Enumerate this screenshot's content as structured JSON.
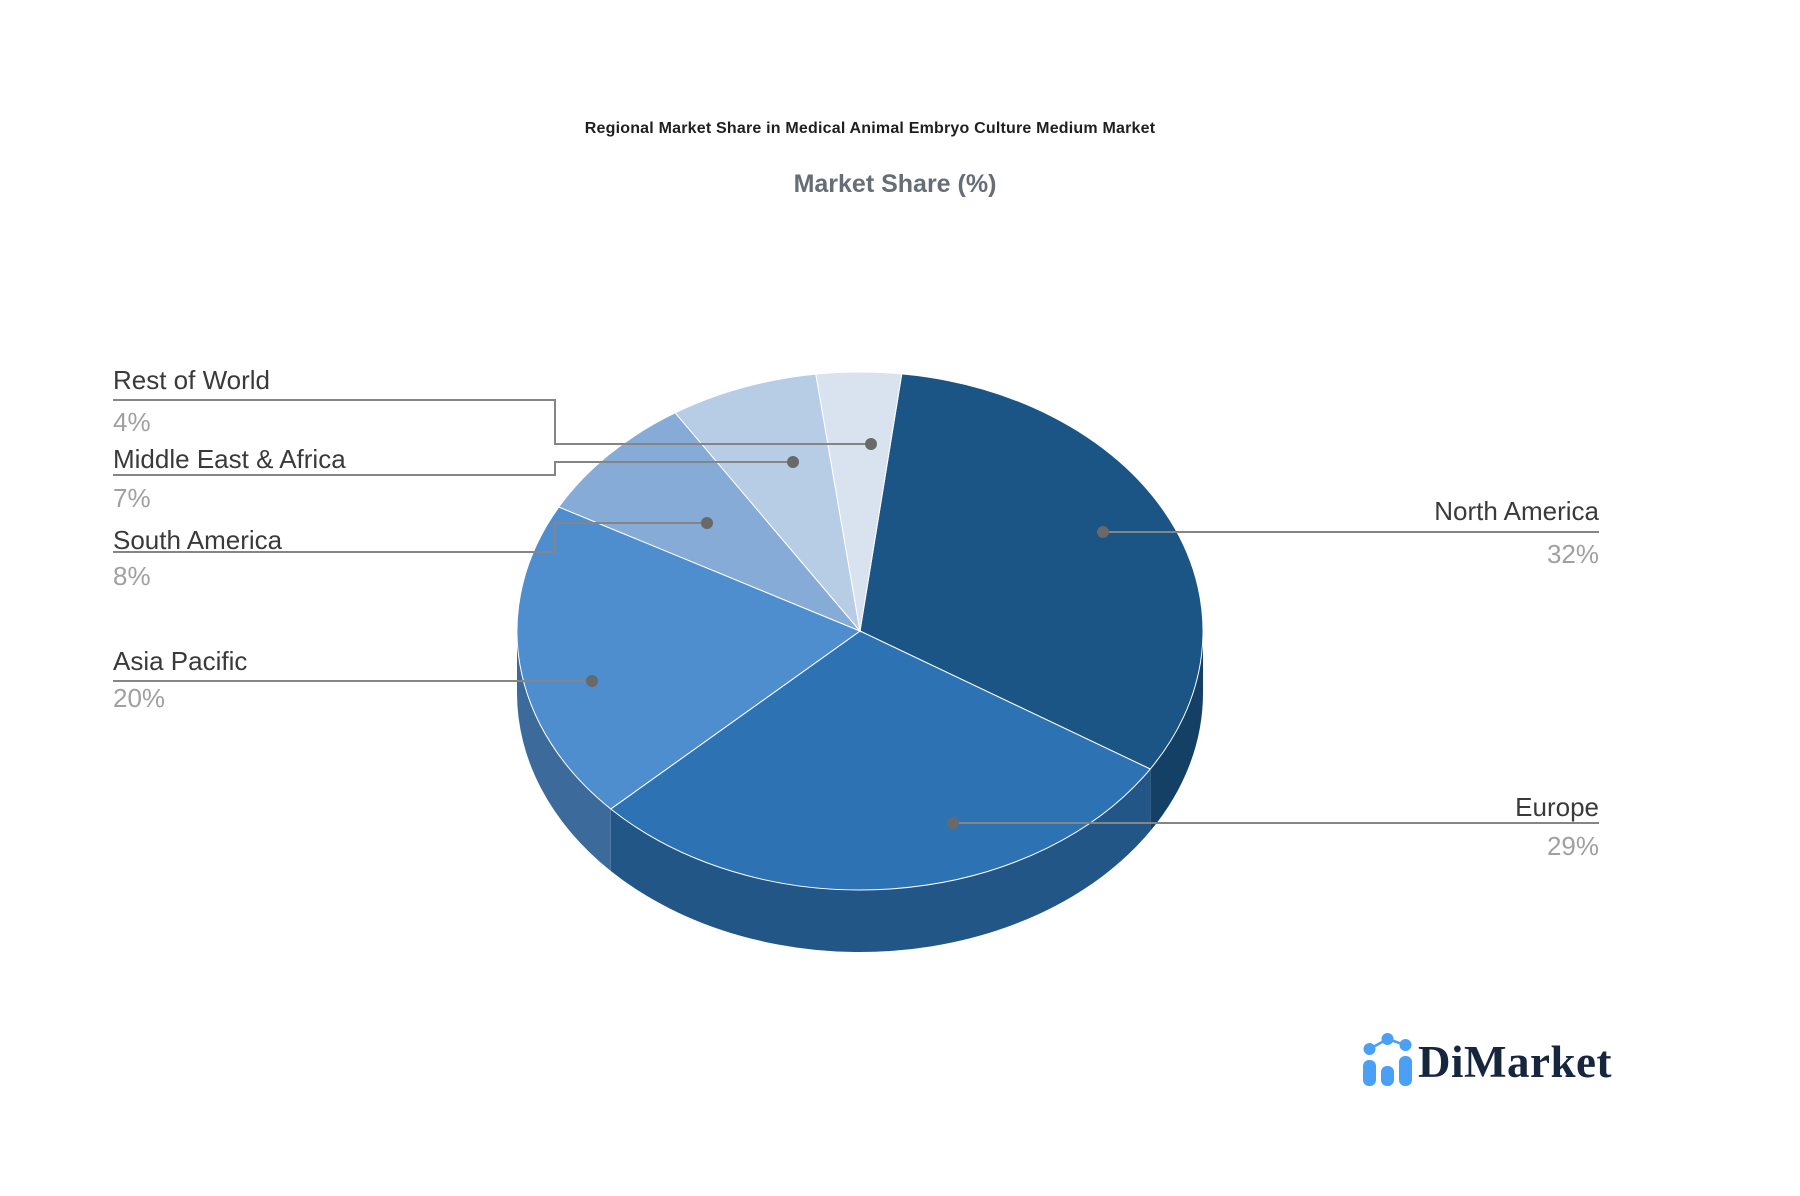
{
  "title": "Regional Market Share in Medical Animal Embryo Culture Medium Market",
  "subtitle": "Market Share (%)",
  "watermark": {
    "text": "DiMarket",
    "icon": "bar-chart-with-dots-icon",
    "icon_color": "#4aa0f5",
    "text_color": "#17263f"
  },
  "chart_data": {
    "type": "pie",
    "style": "3d",
    "title": "Regional Market Share in Medical Animal Embryo Culture Medium Market",
    "subtitle": "Market Share (%)",
    "unit": "%",
    "start_angle_deg": 7,
    "legend_position": "callout-labels",
    "slices": [
      {
        "label": "North America",
        "value": 32,
        "color": "#1a5586",
        "side_color": "#134064"
      },
      {
        "label": "Europe",
        "value": 29,
        "color": "#2d73b4",
        "side_color": "#225687"
      },
      {
        "label": "Asia Pacific",
        "value": 20,
        "color": "#4e8dce",
        "side_color": "#3b6a9b"
      },
      {
        "label": "South America",
        "value": 8,
        "color": "#85abd6",
        "side_color": "#6480a0"
      },
      {
        "label": "Middle East & Africa",
        "value": 7,
        "color": "#b7cce5",
        "side_color": "#899aac"
      },
      {
        "label": "Rest of World",
        "value": 4,
        "color": "#d9e2ef",
        "side_color": "#a3aab3"
      }
    ],
    "connector_color": "#858585",
    "connector_dot_color": "#696969"
  }
}
